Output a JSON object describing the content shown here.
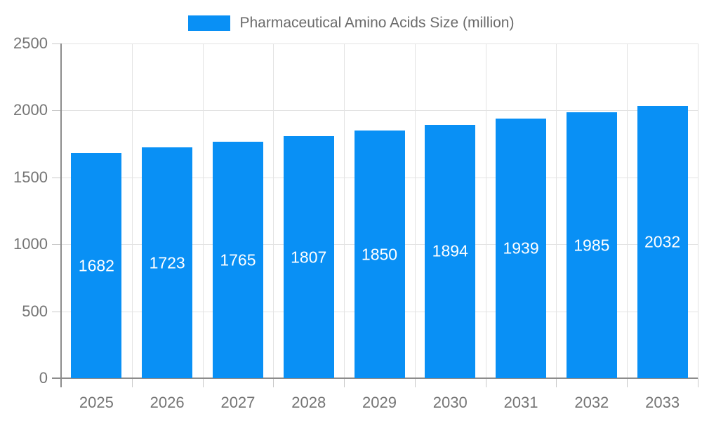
{
  "legend": {
    "label": "Pharmaceutical Amino Acids Size (million)",
    "swatch_color": "#0990f5"
  },
  "chart_data": {
    "type": "bar",
    "categories": [
      "2025",
      "2026",
      "2027",
      "2028",
      "2029",
      "2030",
      "2031",
      "2032",
      "2033"
    ],
    "values": [
      1682,
      1723,
      1765,
      1807,
      1850,
      1894,
      1939,
      1985,
      2032
    ],
    "series_name": "Pharmaceutical Amino Acids Size (million)",
    "title": "Pharmaceutical Amino Acids Size (million)",
    "xlabel": "",
    "ylabel": "",
    "ylim": [
      0,
      2500
    ],
    "yticks": [
      0,
      500,
      1000,
      1500,
      2000,
      2500
    ],
    "grid": true,
    "legend_position": "top",
    "bar_labels_visible": true,
    "bar_label_position": "center"
  },
  "colors": {
    "bar": "#0990f5",
    "bar_label": "#ffffff",
    "grid": "#e3e3e3",
    "tick_mark": "#c9c9c9",
    "axis_line": "#8c8c8c",
    "tick_label": "#757575",
    "legend_label": "#6b6b6b"
  }
}
